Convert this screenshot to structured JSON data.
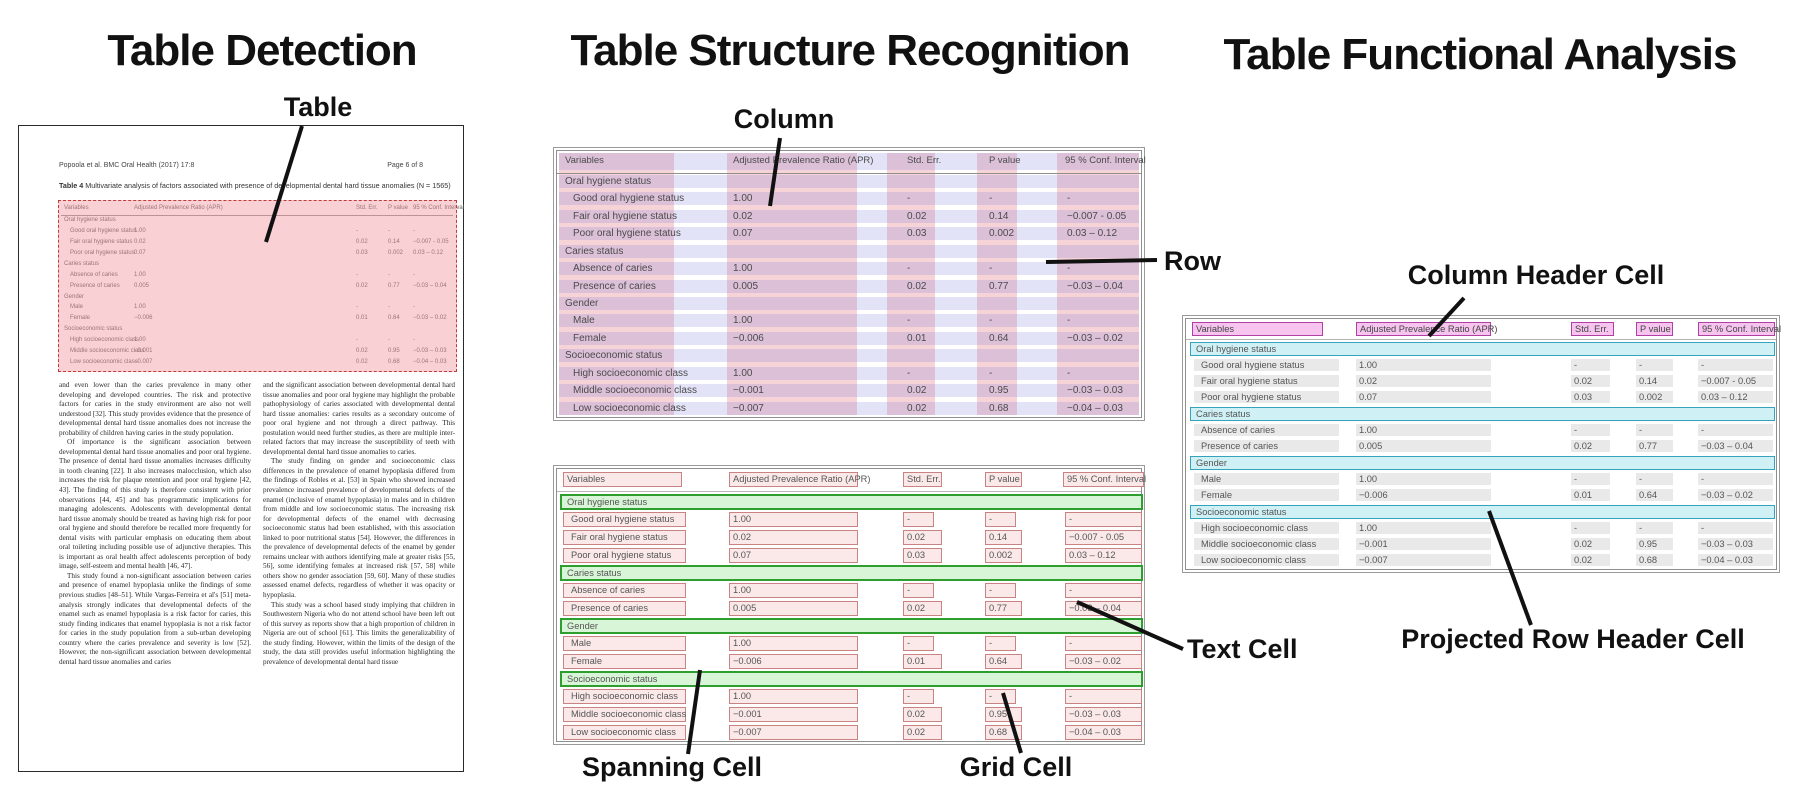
{
  "titles": {
    "panel1": "Table Detection",
    "panel2": "Table Structure Recognition",
    "panel3": "Table Functional Analysis"
  },
  "callouts": {
    "table": "Table",
    "column": "Column",
    "row": "Row",
    "spanning_cell": "Spanning Cell",
    "grid_cell": "Grid Cell",
    "text_cell": "Text Cell",
    "column_header_cell": "Column Header Cell",
    "projected_row_header_cell": "Projected Row Header Cell"
  },
  "document": {
    "header_left": "Popoola et al. BMC Oral Health (2017) 17:8",
    "header_right": "Page 6 of 8",
    "caption_bold": "Table 4",
    "caption_rest": " Multivariate analysis of factors associated with presence of developmental dental hard tissue anomalies (N = 1565)",
    "col1": [
      "and even lower than the caries prevalence in many other developing and developed countries. The risk and protective factors for caries in the study environment are also not well understood [32]. This study provides evidence that the presence of developmental dental hard tissue anomalies does not increase the probability of children having caries in the study population.",
      "Of importance is the significant association between developmental dental hard tissue anomalies and poor oral hygiene. The presence of dental hard tissue anomalies increases difficulty in tooth cleaning [22]. It also increases malocclusion, which also increases the risk for plaque retention and poor oral hygiene [42, 43]. The finding of this study is therefore consistent with prior observations [44, 45] and has programmatic implications for managing adolescents. Adolescents with developmental dental hard tissue anomaly should be treated as having high risk for poor oral hygiene and should therefore be recalled more frequently for dental visits with particular emphasis on educating them about oral toileting including possible use of adjunctive therapies. This is important as oral health affect adolescents perception of body image, self-esteem and mental health [46, 47].",
      "This study found a non-significant association between caries and presence of enamel hypoplasia unlike the findings of some previous studies [48–51]. While Vargas-Ferreira et al's [51] meta-analysis strongly indicates that developmental defects of the enamel such as enamel hypoplasia is a risk factor for caries, this study finding indicates that enamel hypoplasia is not a risk factor for caries in the study population from a sub-urban developing country where the caries prevalence and severity is low [52]. However, the non-significant association between developmental dental hard tissue anomalies and caries"
    ],
    "col2": [
      "and the significant association between developmental dental hard tissue anomalies and poor oral hygiene may highlight the probable pathophysiology of caries associated with developmental dental hard tissue anomalies: caries results as a secondary outcome of poor oral hygiene and not through a direct pathway. This postulation would need further studies, as there are multiple inter-related factors that may increase the susceptibility of teeth with developmental dental hard tissue anomalies to caries.",
      "The study finding on gender and socioeconomic class differences in the prevalence of enamel hypoplasia differed from the findings of Robles et al. [53] in Spain who showed increased prevalence increased prevalence of developmental defects of the enamel (inclusive of enamel hypoplasia) in males and in children from middle and low socioeconomic status. The increasing risk for developmental defects of the enamel with decreasing socioeconomic status had been established, with this association linked to poor nutritional status [54]. However, the differences in the prevalence of developmental defects of the enamel by gender remains unclear with authors identifying male at greater risks [55, 56], some identifying females at increased risk [57, 58] while others show no gender association [59, 60]. Many of these studies assessed enamel defects, regardless of whether it was opacity or hypoplasia.",
      "This study was a school based study implying that children in Southwestern Nigeria who do not attend school have been left out of this survey as reports show that a high proportion of children in Nigeria are out of school [61]. This limits the generalizability of the study finding. However, within the limits of the design of the study, the data still provides useful information highlighting the prevalence of developmental dental hard tissue"
    ]
  },
  "table": {
    "columns": [
      "Variables",
      "Adjusted Prevalence Ratio (APR)",
      "Std. Err.",
      "P value",
      "95 % Conf. Interval"
    ],
    "rows": [
      {
        "type": "section",
        "label": "Oral hygiene status"
      },
      {
        "type": "data",
        "label": "Good oral hygiene status",
        "apr": "1.00",
        "se": "-",
        "p": "-",
        "ci": "-"
      },
      {
        "type": "data",
        "label": "Fair oral hygiene status",
        "apr": "0.02",
        "se": "0.02",
        "p": "0.14",
        "ci": "−0.007 - 0.05"
      },
      {
        "type": "data",
        "label": "Poor oral hygiene status",
        "apr": "0.07",
        "se": "0.03",
        "p": "0.002",
        "ci": "0.03 – 0.12"
      },
      {
        "type": "section",
        "label": "Caries status"
      },
      {
        "type": "data",
        "label": "Absence of caries",
        "apr": "1.00",
        "se": "-",
        "p": "-",
        "ci": "-"
      },
      {
        "type": "data",
        "label": "Presence of caries",
        "apr": "0.005",
        "se": "0.02",
        "p": "0.77",
        "ci": "−0.03 – 0.04"
      },
      {
        "type": "section",
        "label": "Gender"
      },
      {
        "type": "data",
        "label": "Male",
        "apr": "1.00",
        "se": "-",
        "p": "-",
        "ci": "-"
      },
      {
        "type": "data",
        "label": "Female",
        "apr": "−0.006",
        "se": "0.01",
        "p": "0.64",
        "ci": "−0.03 – 0.02"
      },
      {
        "type": "section",
        "label": "Socioeconomic status"
      },
      {
        "type": "data",
        "label": "High socioeconomic class",
        "apr": "1.00",
        "se": "-",
        "p": "-",
        "ci": "-"
      },
      {
        "type": "data",
        "label": "Middle socioeconomic class",
        "apr": "−0.001",
        "se": "0.02",
        "p": "0.95",
        "ci": "−0.03 – 0.03"
      },
      {
        "type": "data",
        "label": "Low socioeconomic class",
        "apr": "−0.007",
        "se": "0.02",
        "p": "0.68",
        "ci": "−0.04 – 0.03"
      }
    ]
  },
  "colors": {
    "overlay_pink": "rgba(240,140,150,0.40)",
    "dashed_red": "#c23b3b",
    "col_band": "rgba(226,108,118,0.30)",
    "row_band": "rgba(128,128,222,0.22)",
    "cell_fill": "#fbe9e9",
    "cell_border": "#c98383",
    "span_fill": "#d8f5d8",
    "span_border": "#2e9e2e",
    "maghead_fill": "#f6c4ee",
    "maghead_border": "#b23fa4",
    "cyan_fill": "#cff0f4",
    "cyan_border": "#35a3bb",
    "gray_cell": "#e9e9e9"
  }
}
